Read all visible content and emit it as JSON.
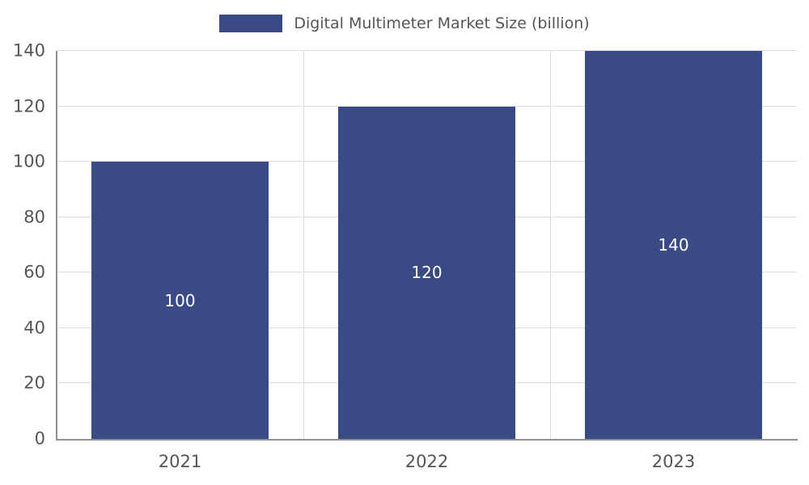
{
  "chart_data": {
    "type": "bar",
    "title": "Digital Multimeter Market Size (billion)",
    "categories": [
      "2021",
      "2022",
      "2023"
    ],
    "values": [
      100,
      120,
      140
    ],
    "xlabel": "",
    "ylabel": "",
    "ylim": [
      0,
      140
    ],
    "yticks": [
      0,
      20,
      40,
      60,
      80,
      100,
      120,
      140
    ],
    "grid": true,
    "legend_position": "top",
    "bar_color": "#3A4A85",
    "bar_label_color": "#FFFFFF",
    "grid_color": "#DDDDDD",
    "axis_color": "#8F8F8F",
    "tick_label_color": "#555555"
  }
}
